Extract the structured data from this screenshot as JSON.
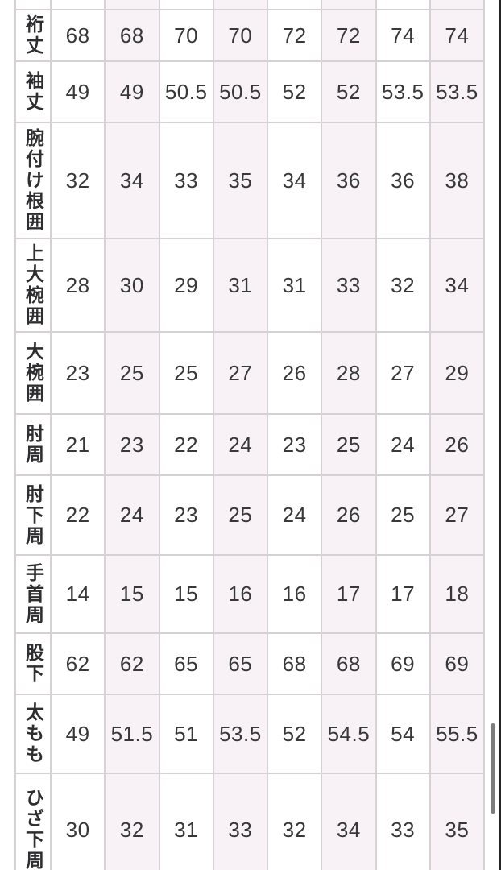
{
  "colors": {
    "pink": "#f8f1f6",
    "border": "#d5d1d5",
    "text": "#38383a",
    "scrollbar": "#7d7d7d",
    "edge": "#262626"
  },
  "table": {
    "description": "size-spec-table",
    "columns": 8,
    "rows": [
      {
        "label": "裄丈",
        "values": [
          "68",
          "68",
          "70",
          "70",
          "72",
          "72",
          "74",
          "74"
        ]
      },
      {
        "label": "袖丈",
        "values": [
          "49",
          "49",
          "50.5",
          "50.5",
          "52",
          "52",
          "53.5",
          "53.5"
        ]
      },
      {
        "label": "腕付け根囲",
        "values": [
          "32",
          "34",
          "33",
          "35",
          "34",
          "36",
          "36",
          "38"
        ]
      },
      {
        "label": "上大椀囲",
        "values": [
          "28",
          "30",
          "29",
          "31",
          "31",
          "33",
          "32",
          "34"
        ]
      },
      {
        "label": "大椀囲",
        "values": [
          "23",
          "25",
          "25",
          "27",
          "26",
          "28",
          "27",
          "29"
        ]
      },
      {
        "label": "肘周",
        "values": [
          "21",
          "23",
          "22",
          "24",
          "23",
          "25",
          "24",
          "26"
        ]
      },
      {
        "label": "肘下周",
        "values": [
          "22",
          "24",
          "23",
          "25",
          "24",
          "26",
          "25",
          "27"
        ]
      },
      {
        "label": "手首周",
        "values": [
          "14",
          "15",
          "15",
          "16",
          "16",
          "17",
          "17",
          "18"
        ]
      },
      {
        "label": "股下",
        "values": [
          "62",
          "62",
          "65",
          "65",
          "68",
          "68",
          "69",
          "69"
        ]
      },
      {
        "label": "太もも",
        "values": [
          "49",
          "51.5",
          "51",
          "53.5",
          "52",
          "54.5",
          "54",
          "55.5"
        ]
      },
      {
        "label": "ひざ下周",
        "values": [
          "30",
          "32",
          "31",
          "33",
          "32",
          "34",
          "33",
          "35"
        ]
      }
    ]
  }
}
